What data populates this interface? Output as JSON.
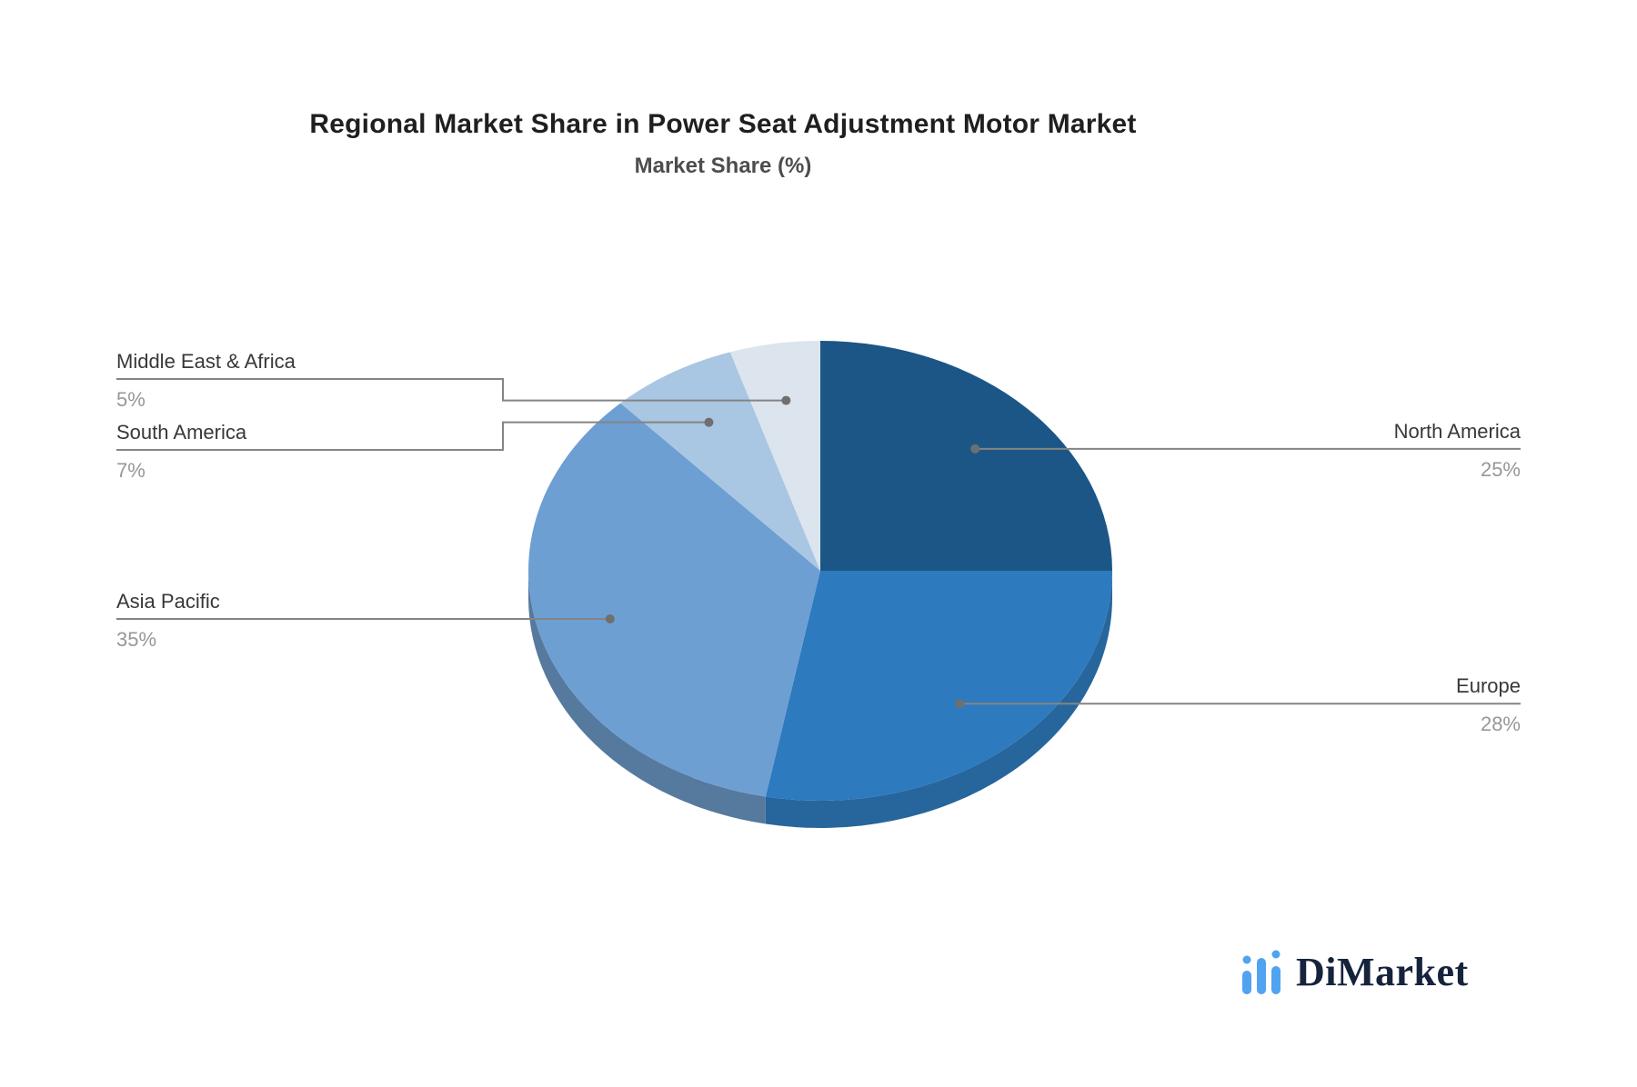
{
  "title": "Regional Market Share in Power Seat Adjustment Motor Market",
  "subtitle": "Market Share (%)",
  "logo": {
    "text": "DiMarket"
  },
  "colors": {
    "connector_line": "#848484",
    "connector_dot": "#6f6f6f",
    "label_text": "#383838",
    "value_text": "#979797",
    "title_text": "#1f1f1f",
    "subtitle_text": "#4d4d4d",
    "logo_text": "#16233c",
    "logo_accent": "#4fa3f1"
  },
  "chart_data": {
    "type": "pie",
    "style": "3d",
    "title": "Regional Market Share in Power Seat Adjustment Motor Market",
    "subtitle": "Market Share (%)",
    "unit": "%",
    "start_angle": "12-oclock",
    "direction": "clockwise",
    "legend_position": "callout-labels",
    "slices": [
      {
        "label": "North America",
        "value": 25,
        "display": "25%",
        "color": "#1c5687",
        "side_color": "#174a75",
        "label_side": "right",
        "label_line_y": 494
      },
      {
        "label": "Europe",
        "value": 28,
        "display": "28%",
        "color": "#2e7abf",
        "side_color": "#26669c",
        "label_side": "right",
        "label_line_y": 774
      },
      {
        "label": "Asia Pacific",
        "value": 35,
        "display": "35%",
        "color": "#6d9fd3",
        "side_color": "#56799e",
        "label_side": "left",
        "label_line_y": 681
      },
      {
        "label": "South America",
        "value": 7,
        "display": "7%",
        "color": "#a9c6e3",
        "side_color": "#8aa9c4",
        "label_side": "left",
        "label_line_y": 495
      },
      {
        "label": "Middle East & Africa",
        "value": 5,
        "display": "5%",
        "color": "#dce4ee",
        "side_color": "#b9c6d8",
        "label_side": "left",
        "label_line_y": 417
      }
    ]
  }
}
